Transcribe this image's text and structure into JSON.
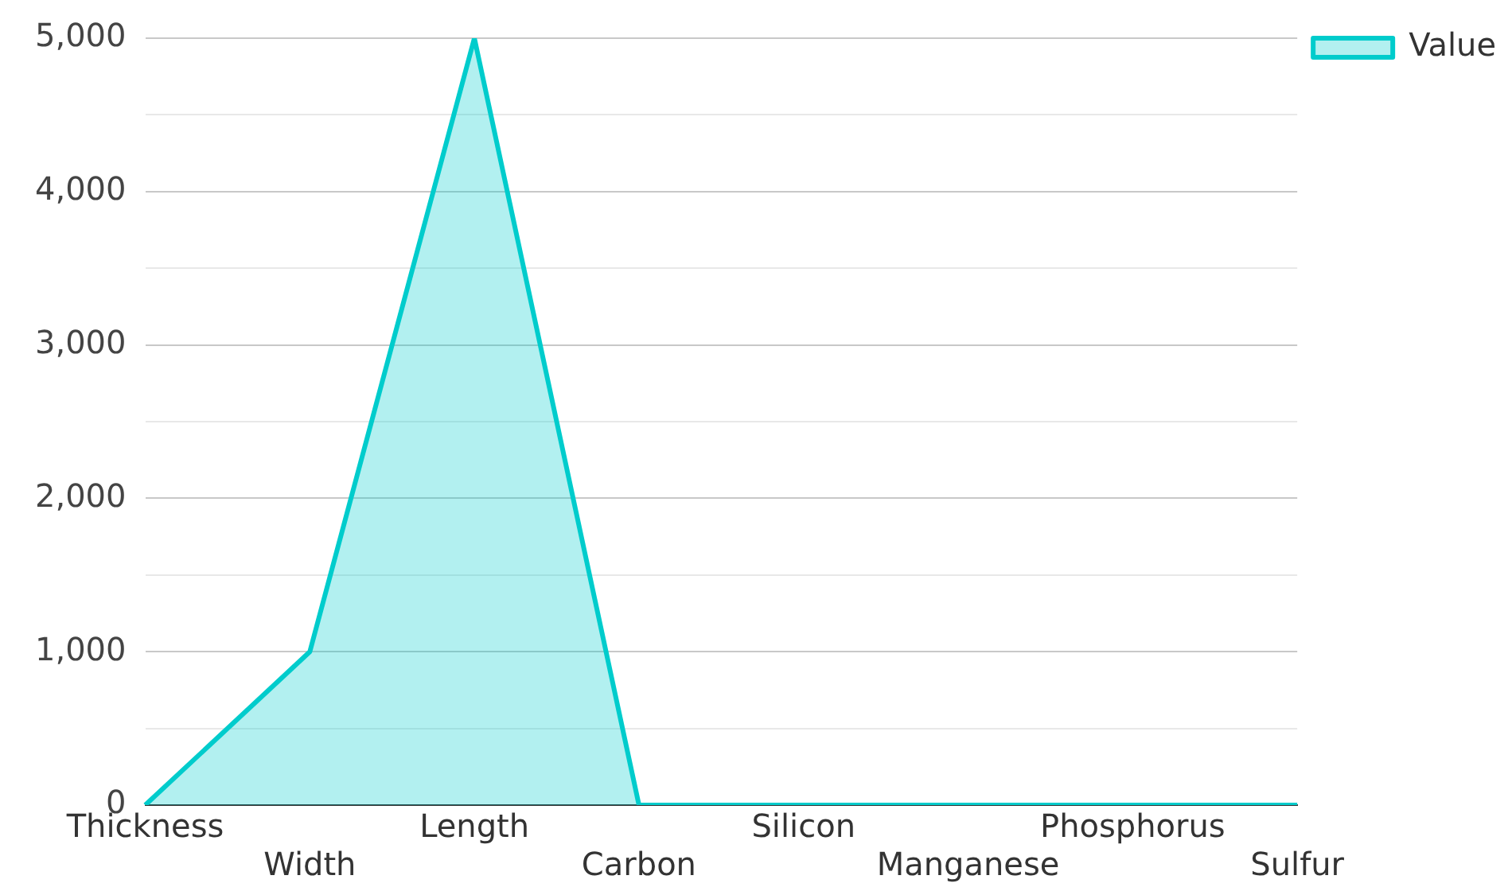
{
  "chart_data": {
    "type": "area",
    "categories": [
      "Thickness",
      "Width",
      "Length",
      "Carbon",
      "Silicon",
      "Manganese",
      "Phosphorus",
      "Sulfur"
    ],
    "series": [
      {
        "name": "Value",
        "color": "#00cccc",
        "values": [
          0,
          1000,
          5000,
          0,
          0,
          0,
          0,
          0
        ]
      }
    ],
    "ylim": [
      0,
      5000
    ],
    "yticks": [
      0,
      {
        "value": 500,
        "label": null
      },
      {
        "value": 1000,
        "label": "1,000"
      },
      {
        "value": 1500,
        "label": null
      },
      {
        "value": 2000,
        "label": "2,000"
      },
      {
        "value": 2500,
        "label": null
      },
      {
        "value": 3000,
        "label": "3,000"
      },
      {
        "value": 3500,
        "label": null
      },
      {
        "value": 4000,
        "label": "4,000"
      },
      {
        "value": 4500,
        "label": null
      },
      {
        "value": 5000,
        "label": "5,000"
      }
    ],
    "grid": "y",
    "legend": "top right"
  }
}
